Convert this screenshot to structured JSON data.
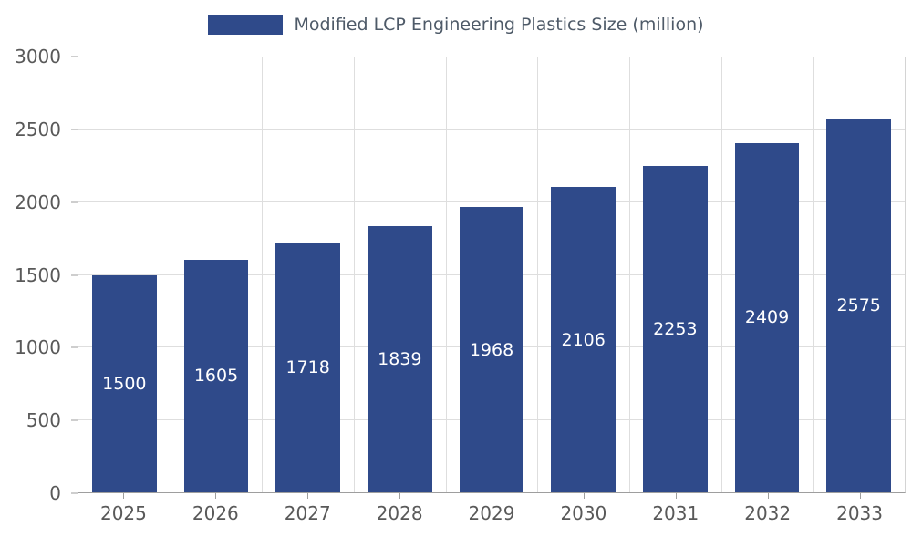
{
  "chart_data": {
    "type": "bar",
    "title": "Modified LCP Engineering Plastics Size (million)",
    "categories": [
      "2025",
      "2026",
      "2027",
      "2028",
      "2029",
      "2030",
      "2031",
      "2032",
      "2033"
    ],
    "values": [
      1500,
      1605,
      1718,
      1839,
      1968,
      2106,
      2253,
      2409,
      2575
    ],
    "xlabel": "",
    "ylabel": "",
    "ylim": [
      0,
      3000
    ],
    "yticks": [
      0,
      500,
      1000,
      1500,
      2000,
      2500,
      3000
    ],
    "grid": true,
    "legend_position": "top",
    "bar_color": "#2f4a8a",
    "label_color": "#ffffff"
  }
}
